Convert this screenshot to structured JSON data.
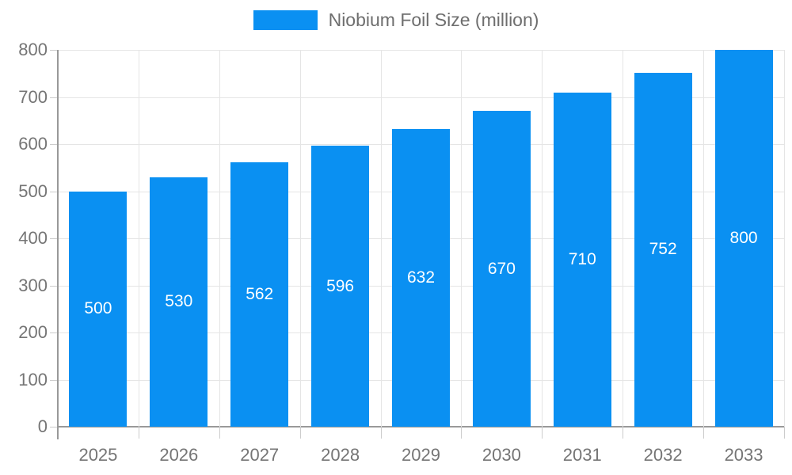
{
  "legend": {
    "label": "Niobium Foil Size (million)"
  },
  "chart_data": {
    "type": "bar",
    "title": "",
    "xlabel": "",
    "ylabel": "",
    "categories": [
      "2025",
      "2026",
      "2027",
      "2028",
      "2029",
      "2030",
      "2031",
      "2032",
      "2033"
    ],
    "series": [
      {
        "name": "Niobium Foil Size (million)",
        "values": [
          500,
          530,
          562,
          596,
          632,
          670,
          710,
          752,
          800
        ]
      }
    ],
    "bar_labels": [
      "500",
      "530",
      "562",
      "596",
      "632",
      "670",
      "710",
      "752",
      "800"
    ],
    "ylim": [
      0,
      800
    ],
    "ytick_step": 100,
    "ytick_labels": [
      "0",
      "100",
      "200",
      "300",
      "400",
      "500",
      "600",
      "700",
      "800"
    ],
    "grid": true,
    "legend_position": "top",
    "colors": {
      "bar": "#0a90f2",
      "bar_label_text": "#ffffff",
      "axis_text": "#757575",
      "legend_text": "#6e6e6e",
      "gridline": "#e5e5e5",
      "axis_line": "#999999",
      "tick": "#cccccc",
      "background": "#ffffff"
    }
  }
}
